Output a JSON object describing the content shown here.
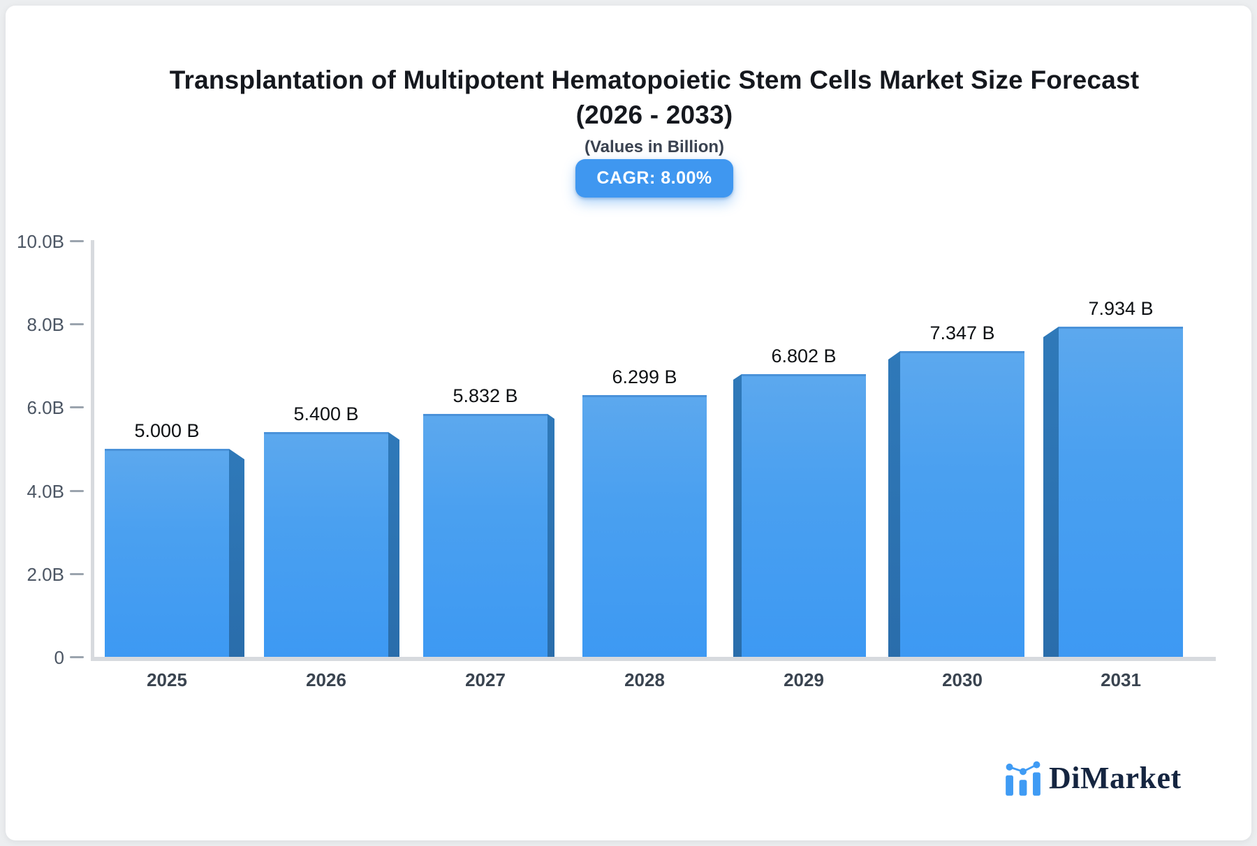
{
  "header": {
    "title_line1": "Transplantation of Multipotent Hematopoietic Stem Cells Market Size Forecast",
    "title_line2": "(2026 - 2033)",
    "subtitle": "(Values in Billion)",
    "cagr_badge": "CAGR: 8.00%"
  },
  "logo": {
    "name": "DiMarket"
  },
  "colors": {
    "bar_face_top": "#5ca8ee",
    "bar_face_bottom": "#3d99f3",
    "bar_side": "#2d74b3",
    "badge": "#3f97f0",
    "axis": "#d7dade",
    "tick": "#9ba4ae",
    "y_label": "#4b5563",
    "x_label": "#3a4450",
    "value_label": "#0e1114"
  },
  "chart_data": {
    "type": "bar",
    "title": "Transplantation of Multipotent Hematopoietic Stem Cells Market Size Forecast (2026 - 2033)",
    "subtitle": "(Values in Billion)",
    "cagr": "8.00%",
    "categories": [
      "2025",
      "2026",
      "2027",
      "2028",
      "2029",
      "2030",
      "2031"
    ],
    "values": [
      5.0,
      5.4,
      5.832,
      6.299,
      6.802,
      7.347,
      7.934
    ],
    "value_labels": [
      "5.000 B",
      "5.400 B",
      "5.832 B",
      "6.299 B",
      "6.802 B",
      "7.347 B",
      "7.934 B"
    ],
    "unit": "Billion",
    "ylim": [
      0,
      10
    ],
    "yticks": [
      {
        "value": 10,
        "label": "10.0B"
      },
      {
        "value": 8,
        "label": "8.0B"
      },
      {
        "value": 6,
        "label": "6.0B"
      },
      {
        "value": 4,
        "label": "4.0B"
      },
      {
        "value": 2,
        "label": "2.0B"
      },
      {
        "value": 0,
        "label": "0"
      }
    ],
    "xlabel": "",
    "ylabel": "",
    "grid": false,
    "legend": false
  },
  "layout_note": "single-series pseudo-3D bar chart, bars left of center extrude right, bars right of center extrude left"
}
